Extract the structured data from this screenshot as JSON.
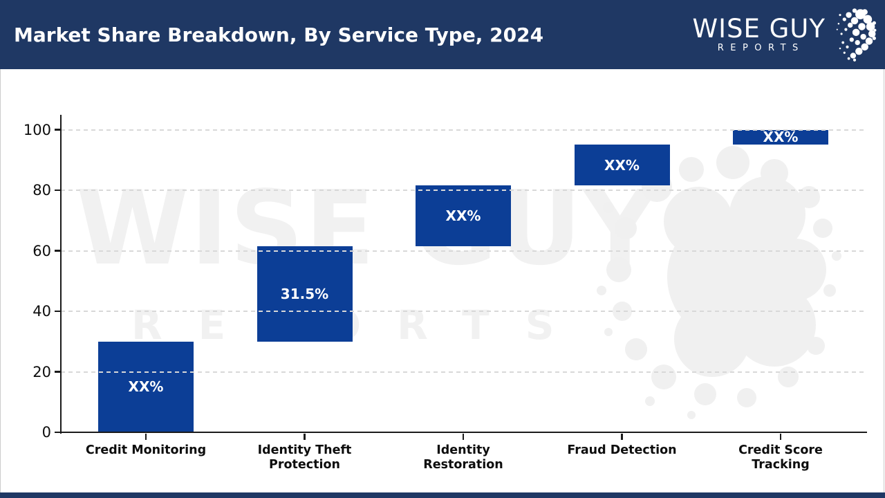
{
  "header": {
    "title": "Market Share Breakdown, By Service Type, 2024",
    "bg_color": "#1f3864",
    "logo": {
      "line1": "WISE GUY",
      "line2": "REPORTS"
    }
  },
  "watermark": {
    "line1": "WISE GUY",
    "line2": "REPORTS"
  },
  "chart_data": {
    "type": "bar",
    "subtype": "floating-waterfall",
    "title": "Market Share Breakdown, By Service Type, 2024",
    "categories": [
      "Credit Monitoring",
      "Identity Theft Protection",
      "Identity Restoration",
      "Fraud Detection",
      "Credit Score Tracking"
    ],
    "segments": [
      {
        "category": "Credit Monitoring",
        "label_lines": [
          "Credit Monitoring"
        ],
        "start": 0,
        "end": 30,
        "value_label": "XX%"
      },
      {
        "category": "Identity Theft Protection",
        "label_lines": [
          "Identity Theft",
          "Protection"
        ],
        "start": 30,
        "end": 61.5,
        "value_label": "31.5%"
      },
      {
        "category": "Identity Restoration",
        "label_lines": [
          "Identity",
          "Restoration"
        ],
        "start": 61.5,
        "end": 81.5,
        "value_label": "XX%"
      },
      {
        "category": "Fraud Detection",
        "label_lines": [
          "Fraud Detection"
        ],
        "start": 81.5,
        "end": 95,
        "value_label": "XX%"
      },
      {
        "category": "Credit Score Tracking",
        "label_lines": [
          "Credit Score",
          "Tracking"
        ],
        "start": 95,
        "end": 100,
        "value_label": "XX%"
      }
    ],
    "y_ticks": [
      0,
      20,
      40,
      60,
      80,
      100
    ],
    "ylim": [
      0,
      105
    ],
    "xlabel": "",
    "ylabel": "",
    "grid": "horizontal-dashed",
    "legend": "none",
    "bar_color": "#0c3e96",
    "grid_color": "#d8d8d8",
    "axis_color": "#1a1a1a"
  }
}
